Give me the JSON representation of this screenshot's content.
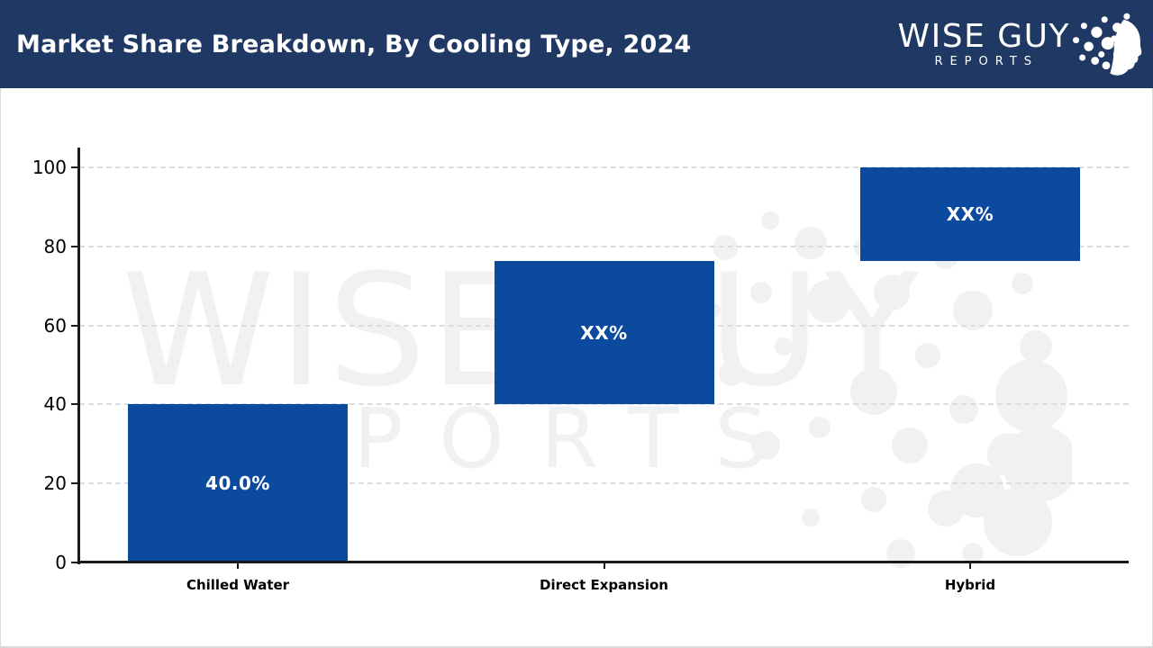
{
  "header": {
    "title": "Market Share Breakdown, By Cooling Type, 2024",
    "bg_color": "#1f3864",
    "logo": {
      "wordmark": "WISE GUY",
      "subtext": "REPORTS"
    }
  },
  "watermark": {
    "wordmark": "WISE GUY",
    "subtext": "REPORTS"
  },
  "chart_data": {
    "type": "bar",
    "subtype": "floating-waterfall",
    "title": "Market Share Breakdown, By Cooling Type, 2024",
    "categories": [
      "Chilled Water",
      "Direct Expansion",
      "Hybrid"
    ],
    "segments": [
      {
        "category": "Chilled Water",
        "start": 0,
        "end": 40,
        "value": 40.0,
        "label": "40.0%"
      },
      {
        "category": "Direct Expansion",
        "start": 40,
        "end": 76.3,
        "value": 36.3,
        "label": "XX%"
      },
      {
        "category": "Hybrid",
        "start": 76.3,
        "end": 100,
        "value": 23.7,
        "label": "XX%"
      }
    ],
    "yticks": [
      0,
      20,
      40,
      60,
      80,
      100
    ],
    "ylim": [
      0,
      105
    ],
    "xlabel": "",
    "ylabel": "",
    "grid": true,
    "grid_style": "dashed",
    "legend": null,
    "bar_color": "#0b4a9e",
    "gridline_color": "#dcdcdc",
    "axis_color": "#1a1a1a",
    "label_color_inside": "#ffffff"
  }
}
